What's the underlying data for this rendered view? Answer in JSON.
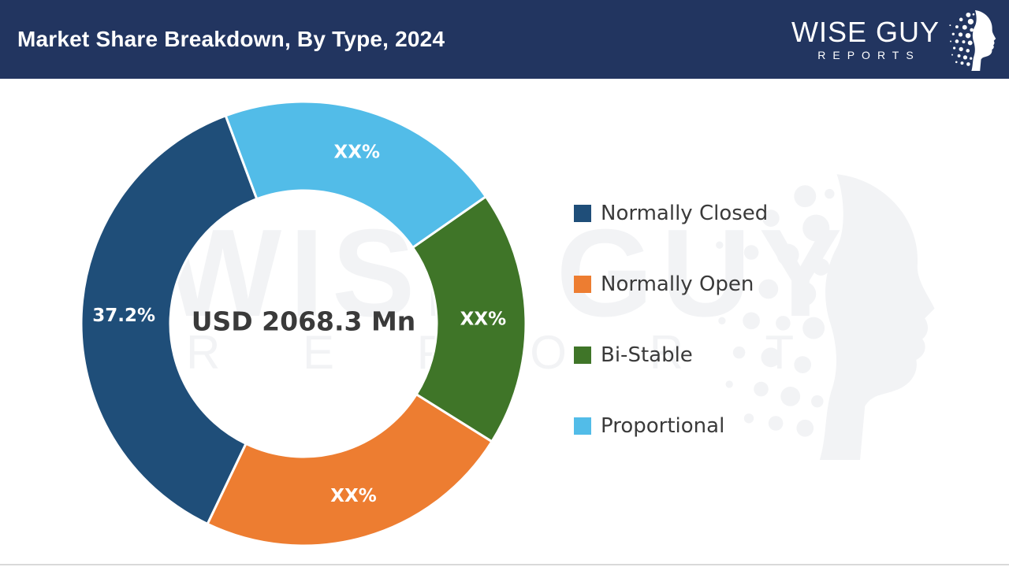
{
  "header": {
    "title": "Market Share Breakdown, By Type, 2024",
    "bg_color": "#223560",
    "logo": {
      "line1": "WISE GUY",
      "line2": "REPORTS"
    }
  },
  "chart_data": {
    "type": "donut",
    "title": "Market Share Breakdown, By Type, 2024",
    "center_label": "USD 2068.3 Mn",
    "start_angle_deg": 110.5,
    "direction": "counterclockwise",
    "outer_radius_px": 282,
    "inner_radius_px": 169,
    "label_radius_px": 228,
    "legend_position": "right",
    "text_color": "#3a3a3a",
    "segments": [
      {
        "label": "Normally Closed",
        "percent": 37.2,
        "display": "37.2%",
        "color": "#1f4e79"
      },
      {
        "label": "Normally Open",
        "percent": 23.2,
        "display": "XX%",
        "color": "#ed7d31"
      },
      {
        "label": "Bi-Stable",
        "percent": 18.6,
        "display": "XX%",
        "color": "#3f7528"
      },
      {
        "label": "Proportional",
        "percent": 21.0,
        "display": "XX%",
        "color": "#52bce8"
      }
    ]
  },
  "watermark": {
    "line1": "WISE GUY",
    "line2": "R E P O R T S"
  }
}
